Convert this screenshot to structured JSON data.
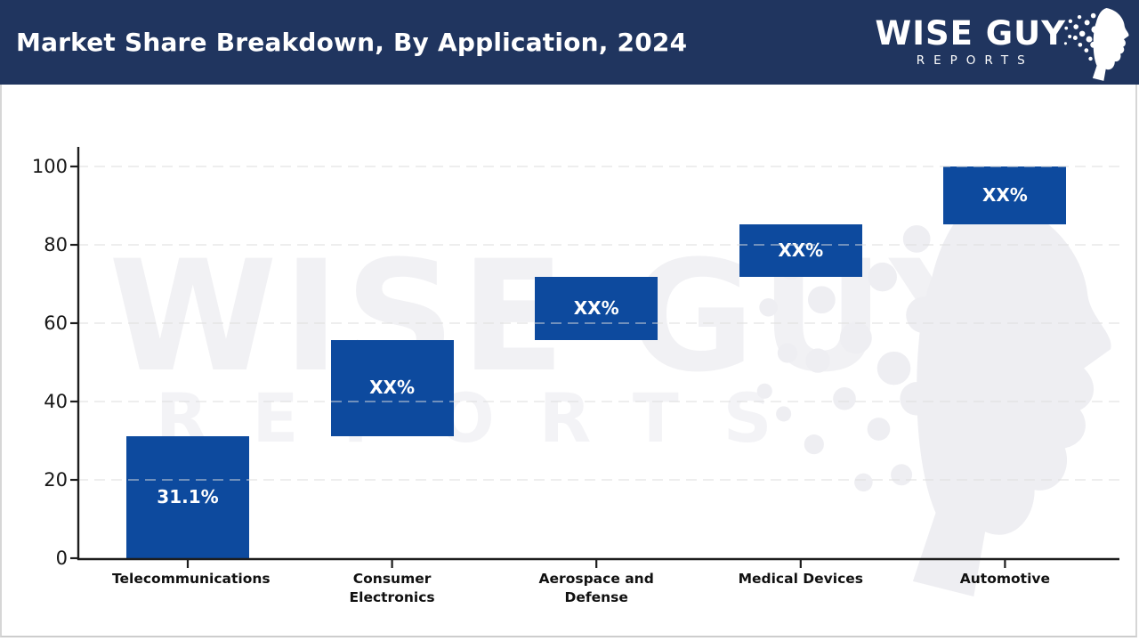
{
  "header": {
    "title": "Market Share Breakdown, By Application, 2024",
    "background_color": "#20355f",
    "logo": {
      "line1": "WISE GUY",
      "line2": "REPORTS"
    }
  },
  "watermark": {
    "line1": "WISE GUY",
    "line2": "REPORTS"
  },
  "chart_data": {
    "type": "bar",
    "subtype": "waterfall",
    "title": "Market Share Breakdown, By Application, 2024",
    "categories": [
      "Telecommunications",
      "Consumer\nElectronics",
      "Aerospace and\nDefense",
      "Medical Devices",
      "Automotive"
    ],
    "series": [
      {
        "name": "Market share (%)",
        "segments": [
          {
            "category": "Telecommunications",
            "start": 0,
            "end": 31.1,
            "label": "31.1%"
          },
          {
            "category": "Consumer Electronics",
            "start": 31.1,
            "end": 55.6,
            "label": "XX%"
          },
          {
            "category": "Aerospace and Defense",
            "start": 55.6,
            "end": 71.8,
            "label": "XX%"
          },
          {
            "category": "Medical Devices",
            "start": 71.8,
            "end": 85.2,
            "label": "XX%"
          },
          {
            "category": "Automotive",
            "start": 85.2,
            "end": 100,
            "label": "XX%"
          }
        ]
      }
    ],
    "xlabel": "",
    "ylabel": "",
    "yticks": [
      0,
      20,
      40,
      60,
      80,
      100
    ],
    "ylim": [
      0,
      105
    ],
    "grid": {
      "visible": true,
      "style": "dashed",
      "axis": "y",
      "color": "#dcdcdc"
    },
    "legend": "none",
    "bar_color": "#0d4a9e",
    "bar_label_color": "#ffffff",
    "axis_color": "#1d1d1d"
  }
}
